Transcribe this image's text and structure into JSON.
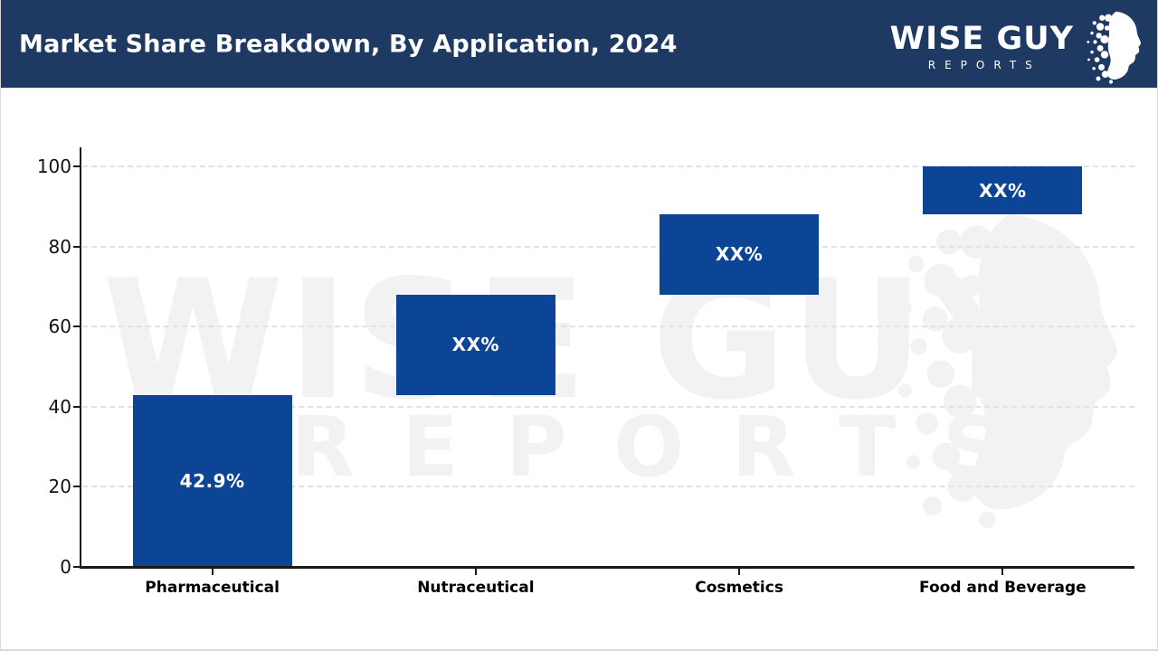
{
  "header": {
    "title": "Market Share Breakdown, By Application, 2024",
    "logo": {
      "line1": "WISE GUY",
      "line2": "REPORTS"
    }
  },
  "watermark": {
    "line1": "WISE GUY",
    "line2": "REPORTS"
  },
  "chart_data": {
    "type": "bar",
    "variant": "waterfall",
    "title": "Market Share Breakdown, By Application, 2024",
    "categories": [
      "Pharmaceutical",
      "Nutraceutical",
      "Cosmetics",
      "Food and Beverage"
    ],
    "segments": [
      {
        "category": "Pharmaceutical",
        "start": 0,
        "end": 42.9,
        "label": "42.9%"
      },
      {
        "category": "Nutraceutical",
        "start": 42.9,
        "end": 68,
        "label": "XX%"
      },
      {
        "category": "Cosmetics",
        "start": 68,
        "end": 88,
        "label": "XX%"
      },
      {
        "category": "Food and Beverage",
        "start": 88,
        "end": 100,
        "label": "XX%"
      }
    ],
    "ylim": [
      0,
      100
    ],
    "yticks": [
      0,
      20,
      40,
      60,
      80,
      100
    ],
    "grid": "horizontal-dashed",
    "legend": "none",
    "bar_color": "#0d4596",
    "bar_label_color": "#ffffff",
    "axis_color": "#1a1a1a",
    "gridline_color": "#e2e2e2",
    "header_color": "#1e3a63"
  }
}
